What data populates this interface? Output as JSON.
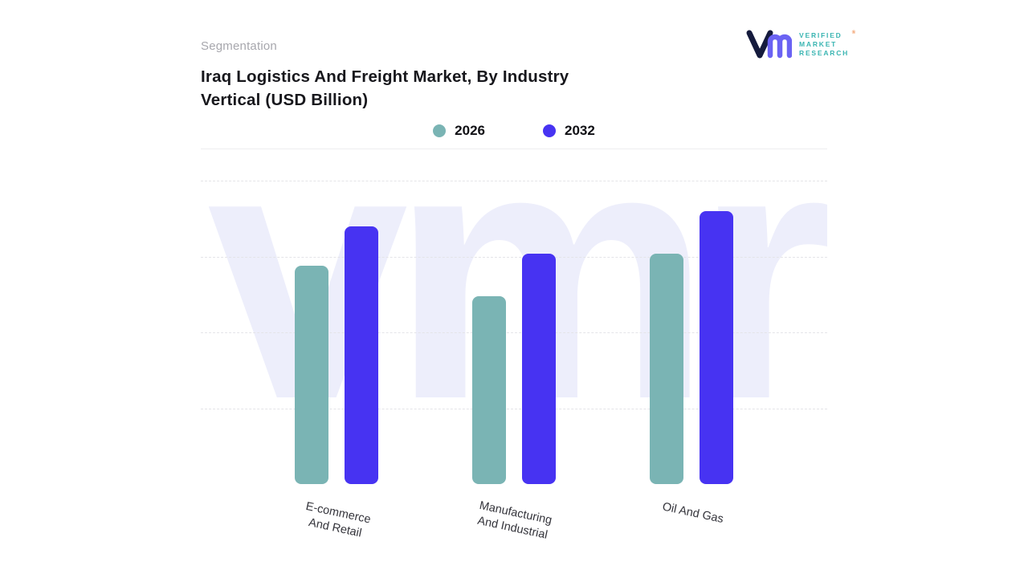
{
  "header": {
    "section_label": "Segmentation",
    "title": "Iraq Logistics And Freight Market, By Industry Vertical (USD Billion)"
  },
  "logo": {
    "lines": [
      "VERIFIED",
      "MARKET",
      "RESEARCH"
    ],
    "registered_mark": "®",
    "text_color": "#3ab5b2",
    "monogram_v_color": "#151b3d",
    "monogram_m_color": "#6b63f3",
    "registered_mark_color": "#ef8b4d"
  },
  "watermark_text": "vmr",
  "colors": {
    "series_2026": "#7ab4b4",
    "series_2032": "#4733f2",
    "watermark": "#edeefb",
    "gridline": "#e4e4e8",
    "baseline": "#dfdfe3"
  },
  "chart_data": {
    "type": "bar",
    "title": "Iraq Logistics And Freight Market, By Industry Vertical (USD Billion)",
    "xlabel": "",
    "ylabel": "",
    "categories": [
      "E-commerce\nAnd Retail",
      "Manufacturing\nAnd Industrial",
      "Oil And Gas"
    ],
    "series": [
      {
        "name": "2026",
        "color": "#7ab4b4",
        "values": [
          72,
          62,
          76
        ]
      },
      {
        "name": "2032",
        "color": "#4733f2",
        "values": [
          85,
          76,
          90
        ]
      }
    ],
    "ylim": [
      0,
      100
    ],
    "y_axis_labeled": false,
    "grid": "horizontal-dashed",
    "legend_position": "top"
  }
}
